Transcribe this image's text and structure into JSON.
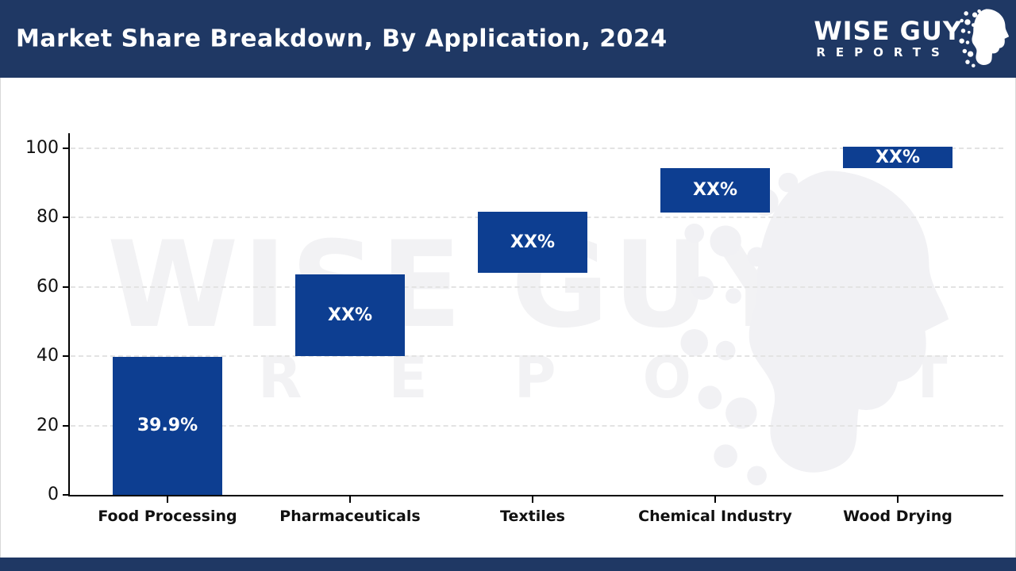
{
  "header": {
    "title": "Market Share Breakdown, By Application, 2024",
    "background": "#1f3864",
    "logo": {
      "primary": "WISE GUY",
      "secondary": "REPORTS"
    }
  },
  "watermark": {
    "primary": "WISE GUY",
    "secondary": "R E P O R T S"
  },
  "footer": {
    "background": "#1f3864"
  },
  "chart_data": {
    "type": "bar",
    "variant": "waterfall",
    "title": "Market Share Breakdown, By Application, 2024",
    "categories": [
      "Food Processing",
      "Pharmaceuticals",
      "Textiles",
      "Chemical Industry",
      "Wood Drying"
    ],
    "segments": [
      {
        "category": "Food Processing",
        "start": 0,
        "end": 39.9,
        "label": "39.9%"
      },
      {
        "category": "Pharmaceuticals",
        "start": 40,
        "end": 63.6,
        "label": "XX%"
      },
      {
        "category": "Textiles",
        "start": 64,
        "end": 81.6,
        "label": "XX%"
      },
      {
        "category": "Chemical Industry",
        "start": 81.5,
        "end": 94.2,
        "label": "XX%"
      },
      {
        "category": "Wood Drying",
        "start": 94.2,
        "end": 100.4,
        "label": "XX%"
      }
    ],
    "xlabel": "",
    "ylabel": "",
    "yticks": [
      0,
      20,
      40,
      60,
      80,
      100
    ],
    "ylim": [
      0,
      104
    ],
    "grid": {
      "horizontal": true,
      "style": "dashed",
      "color": "#e3e3e3"
    },
    "legend": "none",
    "bar_color": "#0d3e91",
    "bar_label_color": "#ffffff",
    "axis_color": "#000000"
  }
}
